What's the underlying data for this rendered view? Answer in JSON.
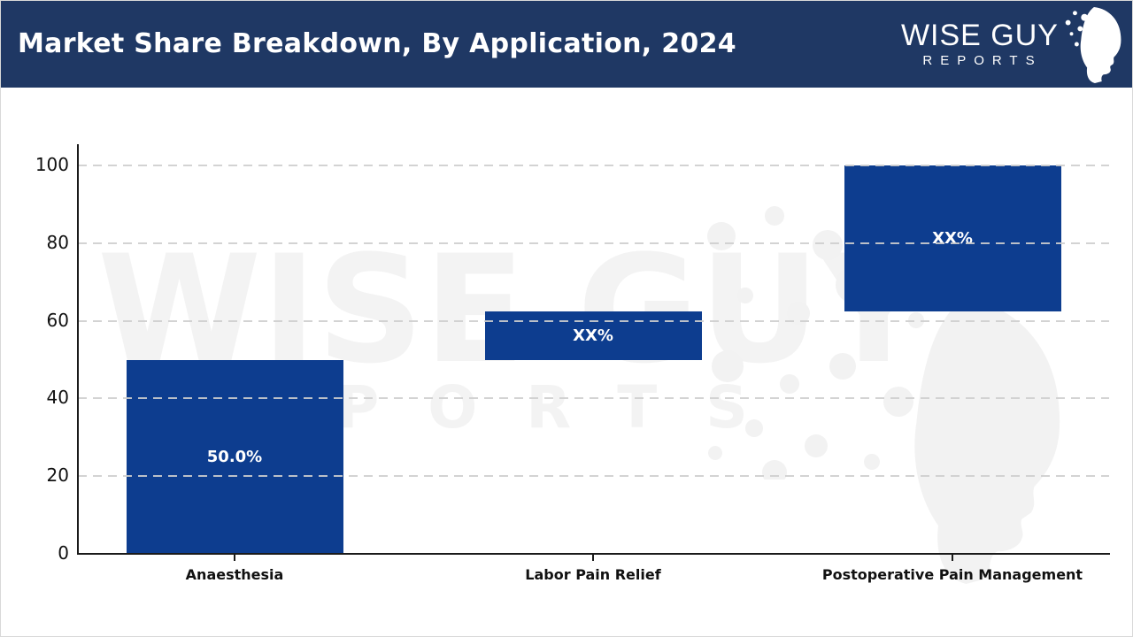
{
  "header": {
    "title": "Market Share Breakdown, By Application, 2024",
    "logo": {
      "wordmark": "WISE GUY",
      "subtext": "REPORTS"
    }
  },
  "watermark": {
    "wordmark": "WISE GUY",
    "subtext": "REPORTS"
  },
  "chart_data": {
    "type": "bar",
    "subtype": "floating-waterfall-percentage",
    "title": "Market Share Breakdown, By Application, 2024",
    "categories": [
      "Anaesthesia",
      "Labor Pain Relief",
      "Postoperative Pain Management"
    ],
    "series": [
      {
        "name": "Anaesthesia",
        "start": 0,
        "end": 50,
        "label": "50.0%"
      },
      {
        "name": "Labor Pain Relief",
        "start": 50,
        "end": 62.5,
        "label": "XX%"
      },
      {
        "name": "Postoperative Pain Management",
        "start": 62.5,
        "end": 100,
        "label": "XX%"
      }
    ],
    "xlabel": "",
    "ylabel": "",
    "yticks": [
      0,
      20,
      40,
      60,
      80,
      100
    ],
    "ylim": [
      0,
      105
    ],
    "grid": "horizontal-dashed",
    "legend": "none",
    "colors": {
      "bar": "#0d3d8f",
      "header_bg": "#1f3864",
      "grid": "#d9d9d9",
      "axis": "#1a1a1a",
      "title": "#ffffff",
      "bar_label": "#ffffff",
      "watermark": "#f2f2f2"
    }
  }
}
